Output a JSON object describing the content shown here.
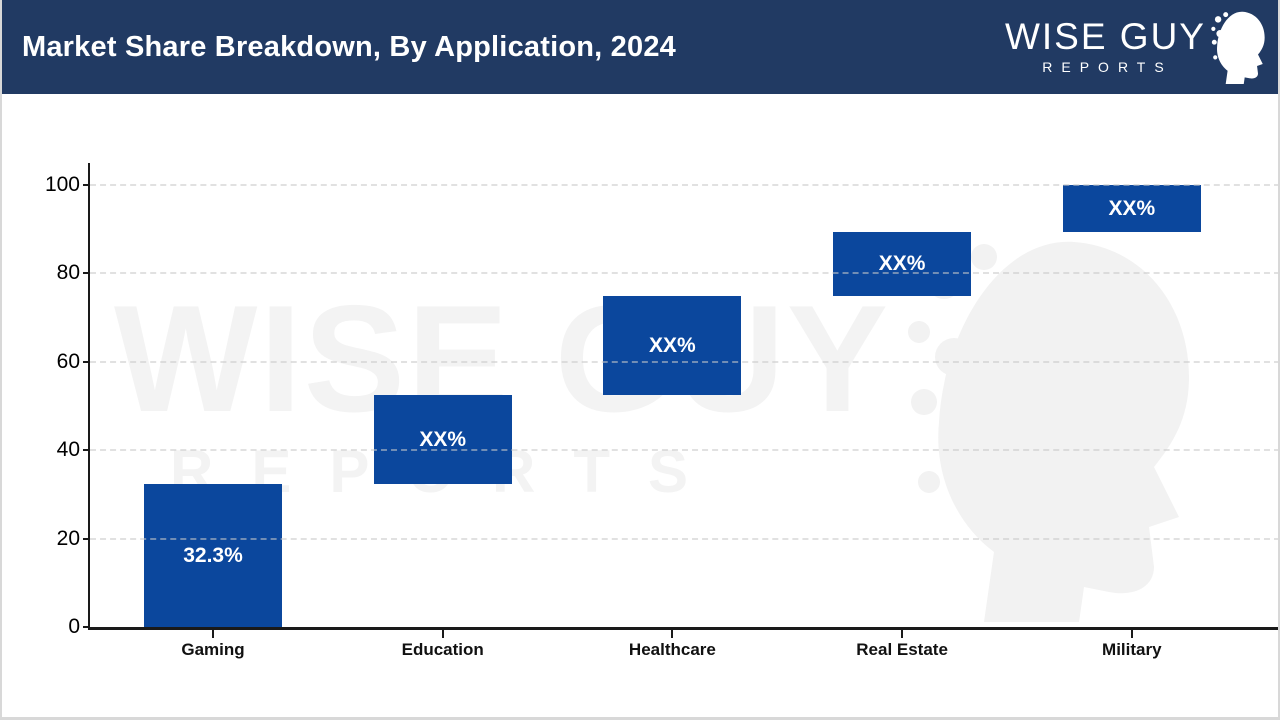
{
  "header": {
    "title": "Market Share Breakdown, By Application, 2024",
    "logo": {
      "wordmark": "WISE GUY",
      "subtext": "REPORTS"
    }
  },
  "watermark": {
    "line1": "WISE GUY",
    "line2": "REPORTS"
  },
  "chart_data": {
    "type": "bar",
    "subtype": "waterfall",
    "title": "Market Share Breakdown, By Application, 2024",
    "categories": [
      "Gaming",
      "Education",
      "Healthcare",
      "Real Estate",
      "Military"
    ],
    "series": [
      {
        "name": "Market Share (%)",
        "segments": [
          {
            "category": "Gaming",
            "start": 0,
            "end": 32.3,
            "label": "32.3%"
          },
          {
            "category": "Education",
            "start": 32.3,
            "end": 52.4,
            "label": "XX%"
          },
          {
            "category": "Healthcare",
            "start": 52.4,
            "end": 74.9,
            "label": "XX%"
          },
          {
            "category": "Real Estate",
            "start": 74.9,
            "end": 89.3,
            "label": "XX%"
          },
          {
            "category": "Military",
            "start": 89.3,
            "end": 100,
            "label": "XX%"
          }
        ]
      }
    ],
    "yticks": [
      0,
      20,
      40,
      60,
      80,
      100
    ],
    "ylim": [
      0,
      105
    ],
    "xlabel": "",
    "ylabel": "",
    "grid": "horizontal-dashed",
    "legend": "none",
    "bar_color": "#0b479d",
    "bar_label_color": "#ffffff",
    "header_color": "#213a63"
  }
}
